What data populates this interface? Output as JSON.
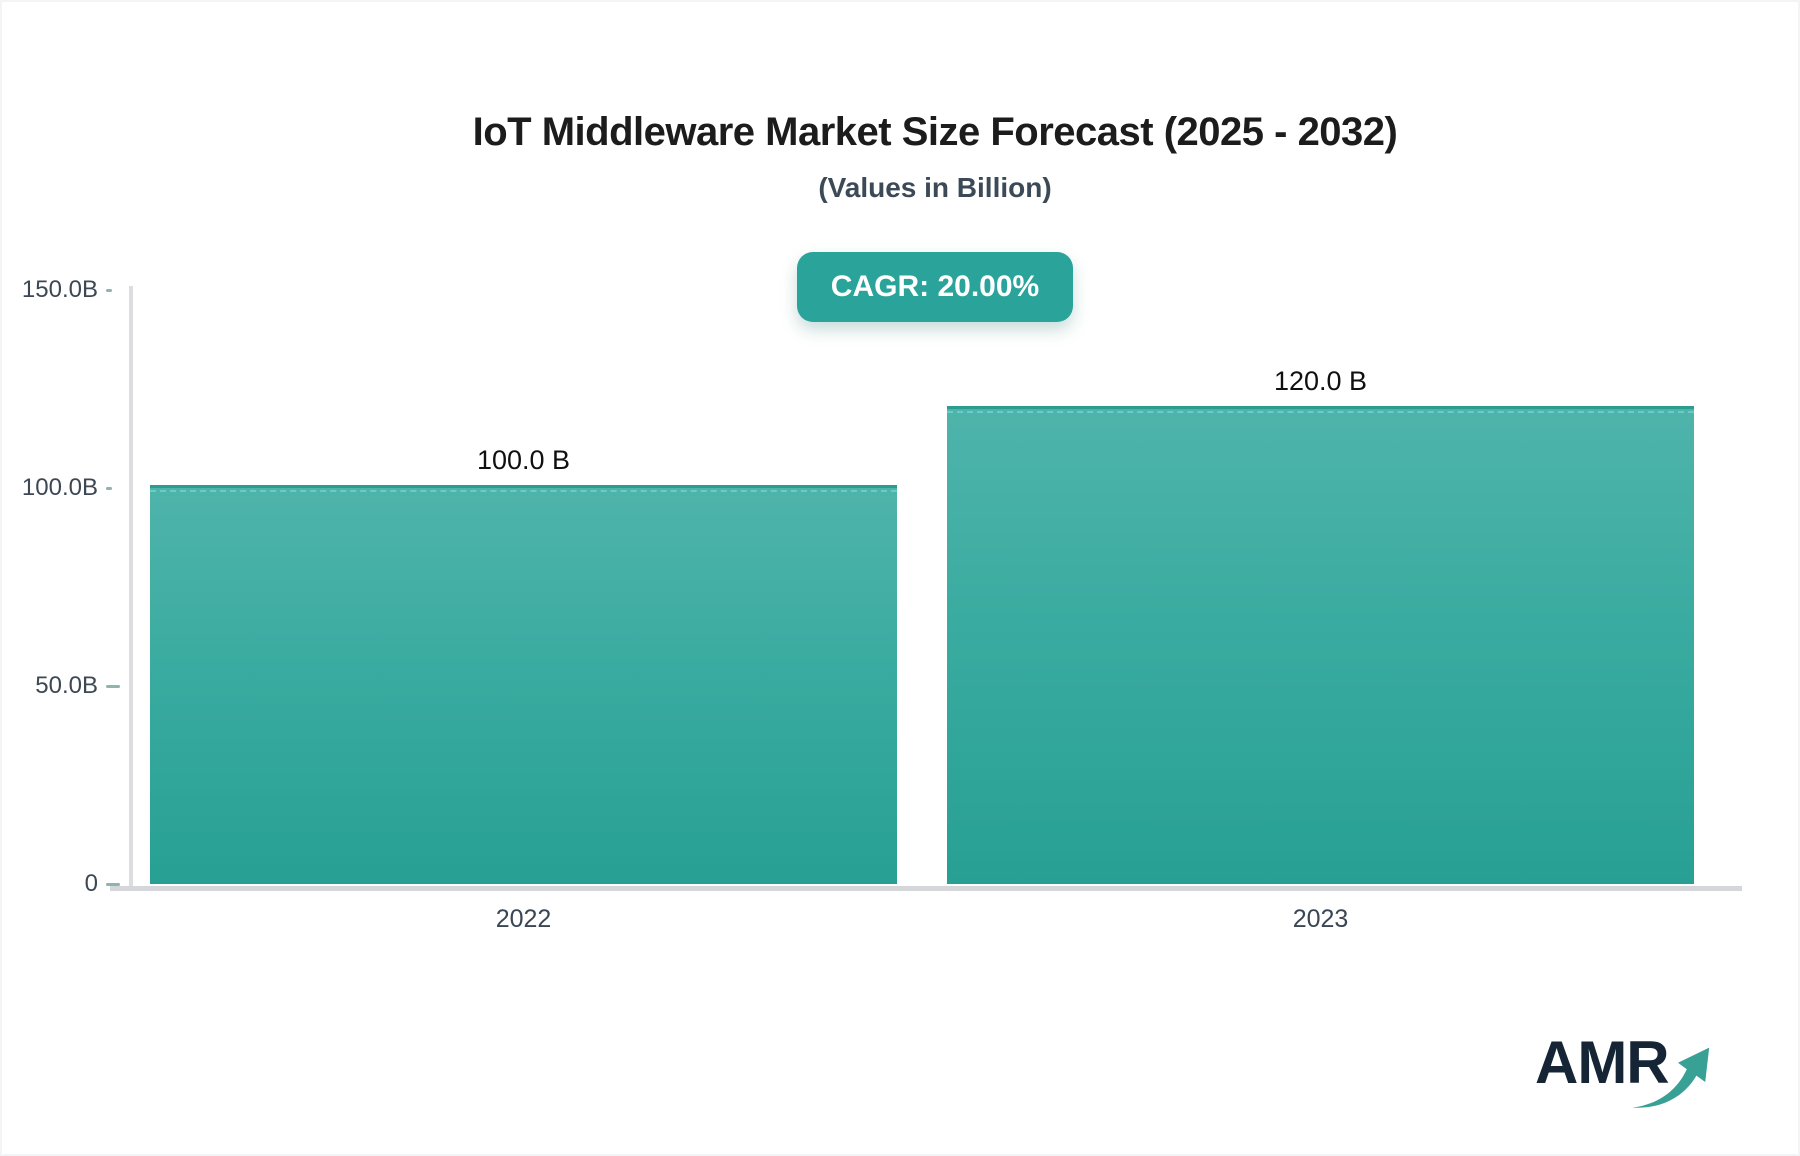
{
  "header": {
    "title": "IoT Middleware Market Size Forecast (2025 - 2032)",
    "subtitle": "(Values in Billion)",
    "cagr_badge": "CAGR: 20.00%"
  },
  "chart_data": {
    "type": "bar",
    "title": "IoT Middleware Market Size Forecast (2025 - 2032)",
    "subtitle": "(Values in Billion)",
    "cagr": "20.00%",
    "categories": [
      "2022",
      "2023"
    ],
    "values": [
      100.0,
      120.0
    ],
    "bar_labels": [
      "100.0 B",
      "120.0 B"
    ],
    "xlabel": "",
    "ylabel": "",
    "ylim": [
      0,
      150
    ],
    "yticks": [
      {
        "value": 150,
        "label": "150.0B"
      },
      {
        "value": 100,
        "label": "100.0B"
      },
      {
        "value": 50,
        "label": "50.0B"
      },
      {
        "value": 0,
        "label": "0"
      }
    ],
    "grid": false,
    "legend_position": "none"
  },
  "colors": {
    "accent_teal": "#2aa49b",
    "bar_gradient_top": "#4fb4ab",
    "bar_gradient_bottom": "#27a093",
    "bar_top_stroke": "#2c9c91",
    "axis_line": "#d4d6da",
    "tick_mark": "#8fb3ae",
    "axis_label": "#3d4854",
    "title_text": "#1c1c1c",
    "badge_text": "#ffffff",
    "logo_navy": "#152535",
    "logo_arrow_teal": "#39a096"
  },
  "logo": {
    "text": "AMR"
  }
}
